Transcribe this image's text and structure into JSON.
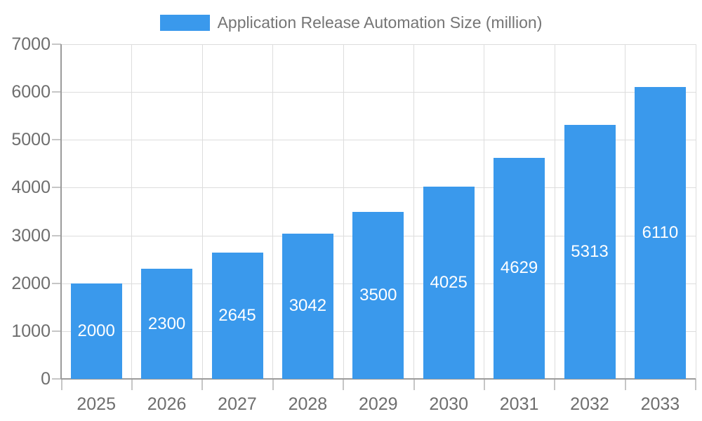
{
  "legend": {
    "label": "Application Release Automation Size (million)"
  },
  "chart_data": {
    "type": "bar",
    "title": "Application Release Automation Size (million)",
    "categories": [
      "2025",
      "2026",
      "2027",
      "2028",
      "2029",
      "2030",
      "2031",
      "2032",
      "2033"
    ],
    "series": [
      {
        "name": "Application Release Automation Size (million)",
        "values": [
          2000,
          2300,
          2645,
          3042,
          3500,
          4025,
          4629,
          5313,
          6110
        ]
      }
    ],
    "bar_value_labels": [
      "2000",
      "2300",
      "2645",
      "3042",
      "3500",
      "4025",
      "4629",
      "5313",
      "6110"
    ],
    "xlabel": "",
    "ylabel": "",
    "ylim": [
      0,
      7000
    ],
    "yticks": [
      0,
      1000,
      2000,
      3000,
      4000,
      5000,
      6000,
      7000
    ],
    "ytick_labels": [
      "0",
      "1000",
      "2000",
      "3000",
      "4000",
      "5000",
      "6000",
      "7000"
    ],
    "grid": true,
    "legend_position": "top-center",
    "colors": {
      "bar": "#3A99EC",
      "grid": "#DDDDDD",
      "axis": "#9B9B9B",
      "tick": "#C6C6C6",
      "axis_text": "#6E6E6E",
      "legend_text": "#757575",
      "bar_label_text": "#FFFFFF",
      "background": "#FFFFFF"
    }
  }
}
